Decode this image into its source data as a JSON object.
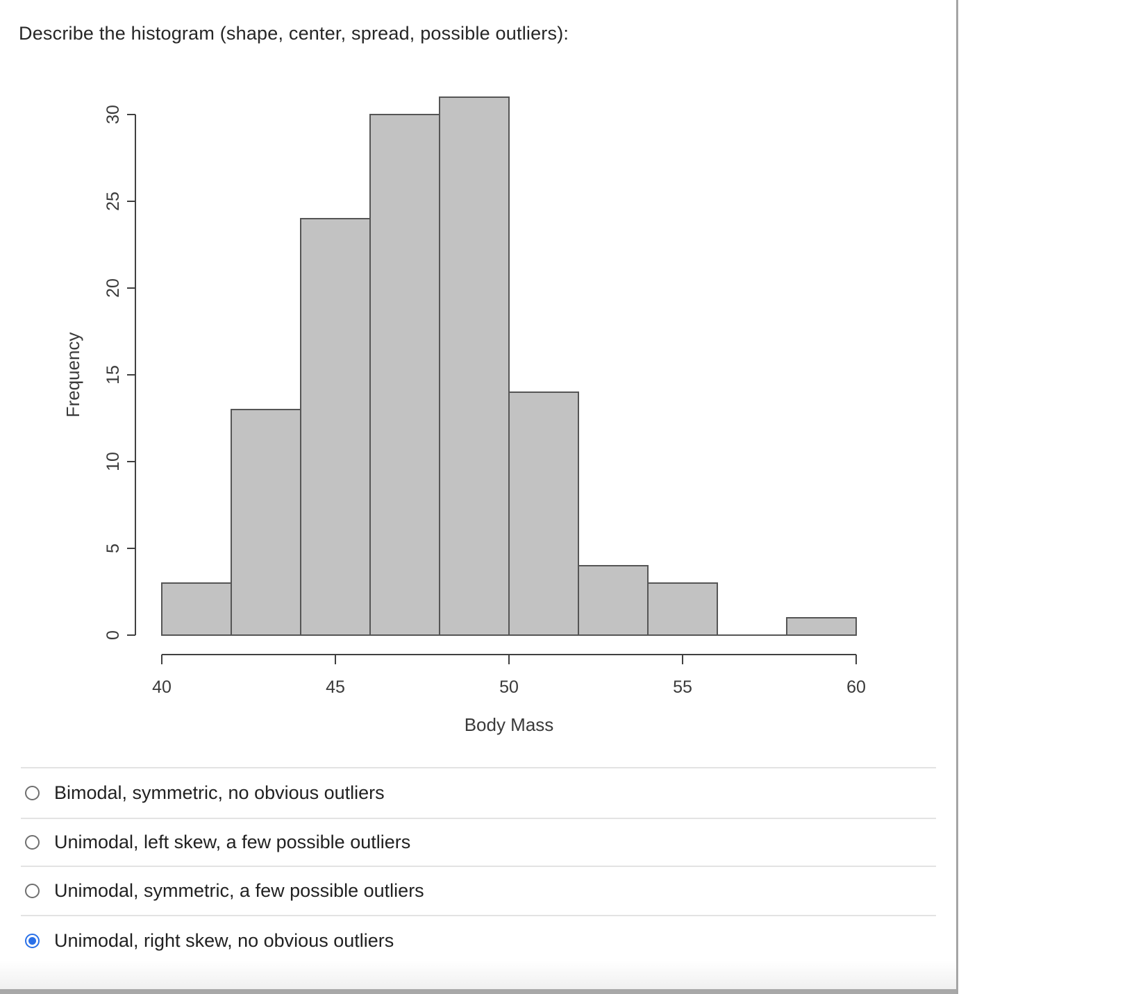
{
  "page": {
    "title": "Describe the histogram (shape, center, spread, possible outliers):"
  },
  "chart_data": {
    "type": "bar",
    "subtype": "histogram",
    "categories": [
      "40-42",
      "42-44",
      "44-46",
      "46-48",
      "48-50",
      "50-52",
      "52-54",
      "54-56",
      "56-58",
      "58-60"
    ],
    "values": [
      3,
      13,
      24,
      30,
      31,
      14,
      4,
      3,
      0,
      1
    ],
    "bin_start": 40,
    "bin_width": 2,
    "title": "",
    "xlabel": "Body Mass",
    "ylabel": "Frequency",
    "x_ticks": [
      40,
      45,
      50,
      55,
      60
    ],
    "y_ticks": [
      0,
      5,
      10,
      15,
      20,
      25,
      30
    ],
    "xlim": [
      40,
      60
    ],
    "ylim": [
      0,
      31
    ],
    "grid": "off",
    "legend": "none",
    "bar_fill": "#c2c2c2",
    "bar_border": "#555555",
    "axis_color": "#404040",
    "tick_label_color": "#3a3a3a"
  },
  "options": [
    {
      "label": "Bimodal, symmetric, no obvious outliers",
      "selected": false
    },
    {
      "label": "Unimodal, left skew, a few possible outliers",
      "selected": false
    },
    {
      "label": "Unimodal, symmetric, a few possible outliers",
      "selected": false
    },
    {
      "label": "Unimodal, right skew, no obvious outliers",
      "selected": true
    }
  ],
  "colors": {
    "accent_blue": "#2970e8",
    "radio_gray": "#6f6f6f",
    "divider": "#e3e3e3",
    "panel_border": "#a5a5a5",
    "text": "#212121",
    "bar_fill": "#c2c2c2",
    "bar_border": "#555555"
  }
}
